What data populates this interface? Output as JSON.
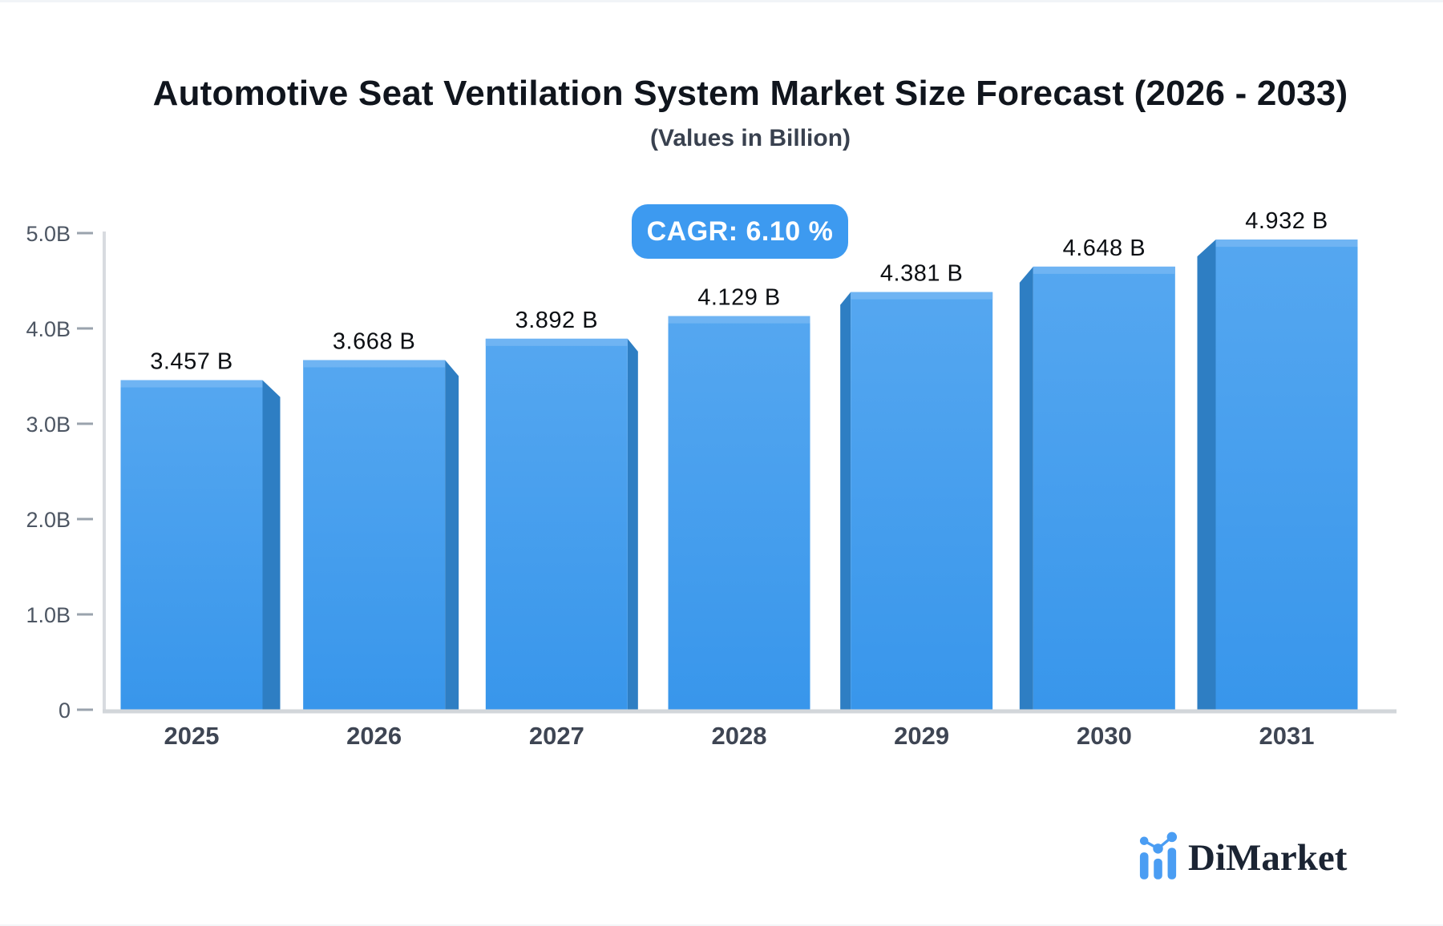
{
  "header": {
    "title": "Automotive Seat Ventilation System Market Size Forecast (2026 - 2033)",
    "subtitle": "(Values in Billion)"
  },
  "badge": {
    "label": "CAGR: 6.10 %"
  },
  "branding": {
    "name": "DiMarket",
    "logo_icon": "mini-bar-chart-with-dots-icon"
  },
  "chart_data": {
    "type": "bar",
    "title": "Automotive Seat Ventilation System Market Size Forecast (2026 - 2033)",
    "subtitle": "(Values in Billion)",
    "annotation": "CAGR: 6.10 %",
    "categories": [
      "2025",
      "2026",
      "2027",
      "2028",
      "2029",
      "2030",
      "2031"
    ],
    "values": [
      3.457,
      3.668,
      3.892,
      4.129,
      4.381,
      4.648,
      4.932
    ],
    "value_labels": [
      "3.457 B",
      "3.668 B",
      "3.892 B",
      "4.129 B",
      "4.381 B",
      "4.648 B",
      "4.932 B"
    ],
    "y_ticks": [
      {
        "label": "5.0B",
        "value": 5.0
      },
      {
        "label": "4.0B",
        "value": 4.0
      },
      {
        "label": "3.0B",
        "value": 3.0
      },
      {
        "label": "2.0B",
        "value": 2.0
      },
      {
        "label": "1.0B",
        "value": 1.0
      },
      {
        "label": "0",
        "value": 0.0
      }
    ],
    "ylim": [
      0,
      5
    ],
    "xlabel": "",
    "ylabel": "",
    "grid": false,
    "legend": "none",
    "colors": {
      "bar_face_top": "#55a7f0",
      "bar_face_bottom": "#3896eb",
      "bar_top_band": "#6fb4f3",
      "bar_side": "#2e7ec3",
      "axis_line": "#d8dbe0",
      "baseline": "#d2d6da",
      "tick_dash": "#9aa3ad",
      "badge_bg": "#3d9af0",
      "logo_blue": "#4a9df3",
      "logo_navy": "#1b2433"
    }
  }
}
